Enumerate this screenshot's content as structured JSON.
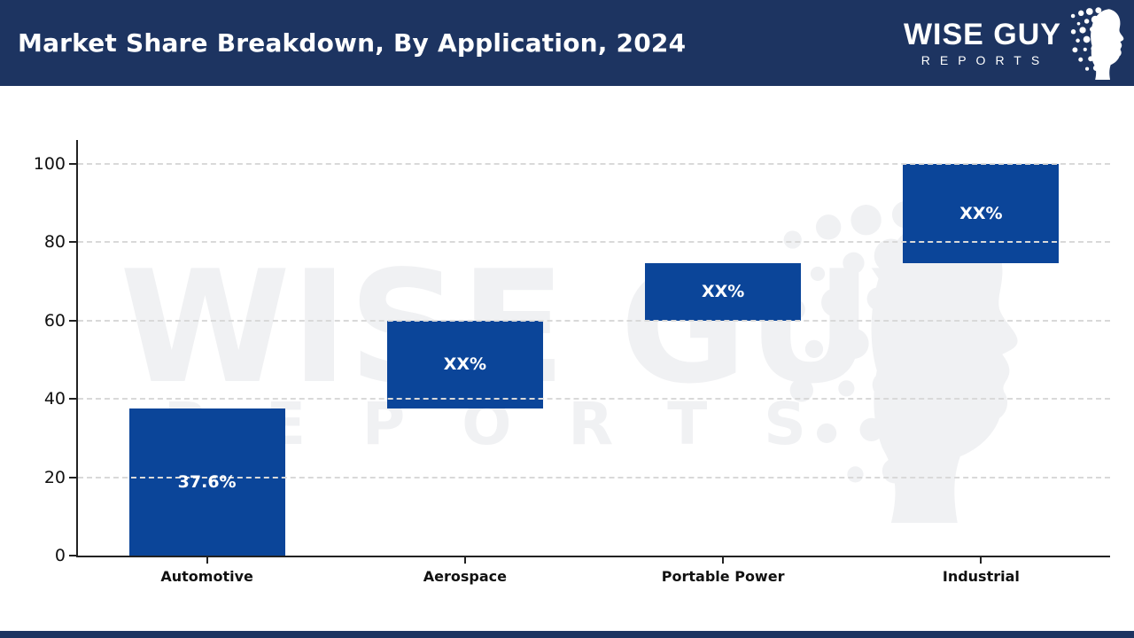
{
  "header": {
    "title": "Market Share Breakdown, By Application, 2024",
    "bg_color": "#1d3461",
    "logo_line1": "WISE GUY",
    "logo_line2": "REPORTS"
  },
  "watermark": {
    "line1": "WISE GUY",
    "line2": "REPORTS"
  },
  "footer": {
    "bg_color": "#1d3461"
  },
  "chart_data": {
    "type": "bar",
    "subtype": "waterfall",
    "title": "Market Share Breakdown, By Application, 2024",
    "categories": [
      "Automotive",
      "Aerospace",
      "Portable Power",
      "Industrial"
    ],
    "bars": [
      {
        "category": "Automotive",
        "start": 0,
        "end": 37.6,
        "label": "37.6%",
        "value_estimate": 37.6
      },
      {
        "category": "Aerospace",
        "start": 37.6,
        "end": 60,
        "label": "XX%",
        "value_estimate": 22.4
      },
      {
        "category": "Portable Power",
        "start": 60,
        "end": 74.7,
        "label": "XX%",
        "value_estimate": 14.7
      },
      {
        "category": "Industrial",
        "start": 74.7,
        "end": 100,
        "label": "XX%",
        "value_estimate": 25.3
      }
    ],
    "yticks": [
      0,
      20,
      40,
      60,
      80,
      100
    ],
    "ylim": [
      0,
      106
    ],
    "xlabel": "",
    "ylabel": "",
    "bar_color": "#0b4599",
    "grid": "horizontal-dashed",
    "grid_color": "#d9d9d9",
    "axis_color": "#222222",
    "legend": "none"
  }
}
